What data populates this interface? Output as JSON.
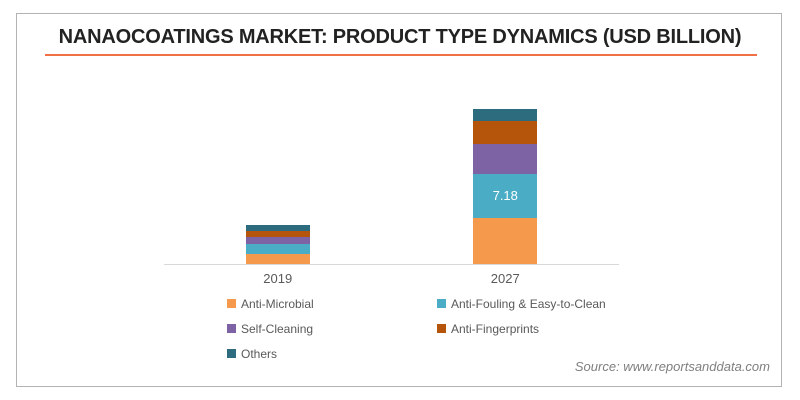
{
  "header": {
    "title": "NANAOCOATINGS MARKET: PRODUCT TYPE DYNAMICS (USD BILLION)",
    "underline_color": "#ee7044"
  },
  "chart_data": {
    "type": "bar",
    "stacked": true,
    "categories": [
      "2019",
      "2027"
    ],
    "series": [
      {
        "name": "Anti-Microbial",
        "color": "#f5994d",
        "values": [
          1.7,
          7.4
        ]
      },
      {
        "name": "Anti-Fouling & Easy-to-Clean",
        "color": "#4bacc6",
        "values": [
          1.5,
          7.18
        ]
      },
      {
        "name": "Self-Cleaning",
        "color": "#7e63a4",
        "values": [
          1.2,
          4.73
        ]
      },
      {
        "name": "Anti-Fingerprints",
        "color": "#b4550b",
        "values": [
          0.92,
          3.8
        ]
      },
      {
        "name": "Others",
        "color": "#2c6c7e",
        "values": [
          0.92,
          1.93
        ]
      }
    ],
    "data_labels": [
      {
        "category": "2027",
        "series": "Anti-Fouling & Easy-to-Clean",
        "text": "7.18"
      }
    ],
    "title": "NANAOCOATINGS MARKET: PRODUCT TYPE DYNAMICS (USD BILLION)",
    "xlabel": "",
    "ylabel": "",
    "axis_line_color": "#d9d9d9",
    "legend_position": "bottom-left",
    "grid": false
  },
  "footer": {
    "source": "Source: www.reportsanddata.com"
  }
}
